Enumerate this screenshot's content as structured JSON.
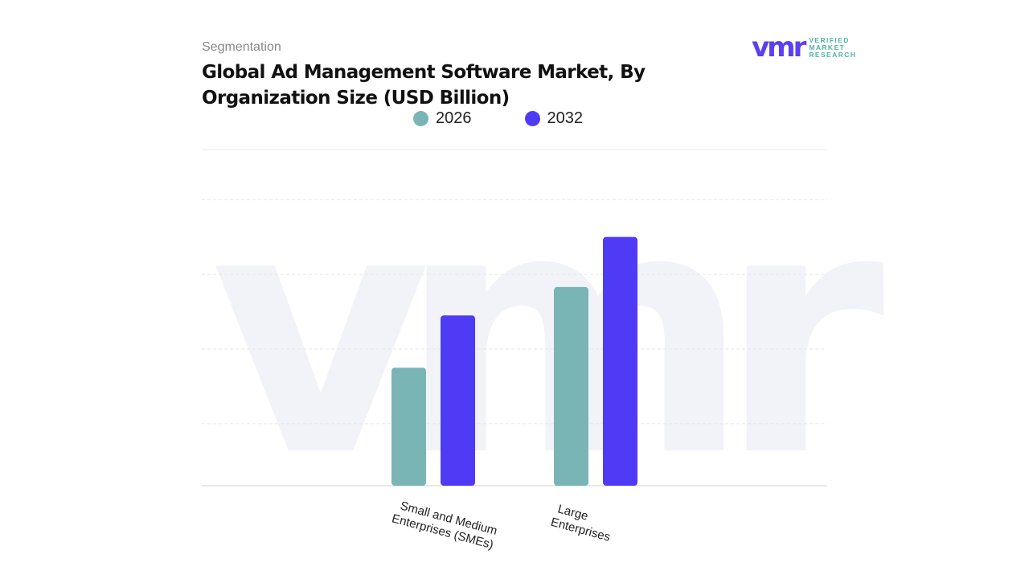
{
  "header": {
    "segment_label": "Segmentation",
    "title": "Global Ad Management Software Market, By Organization Size (USD Billion)"
  },
  "logo": {
    "mark": "vmr",
    "text_lines": [
      "VERIFIED",
      "MARKET",
      "RESEARCH"
    ]
  },
  "chart_data": {
    "type": "bar",
    "title": "Global Ad Management Software Market, By Organization Size (USD Billion)",
    "categories": [
      "Small and Medium Enterprises (SMEs)",
      "Large Enterprises"
    ],
    "series": [
      {
        "name": "2026",
        "color": "#7ab5b5",
        "values": [
          1.58,
          2.66
        ]
      },
      {
        "name": "2032",
        "color": "#4f3bf6",
        "values": [
          2.28,
          3.33
        ]
      }
    ],
    "ylim": [
      0,
      4.5
    ],
    "grid": true,
    "legend": "top",
    "xlabel": "",
    "ylabel": ""
  }
}
